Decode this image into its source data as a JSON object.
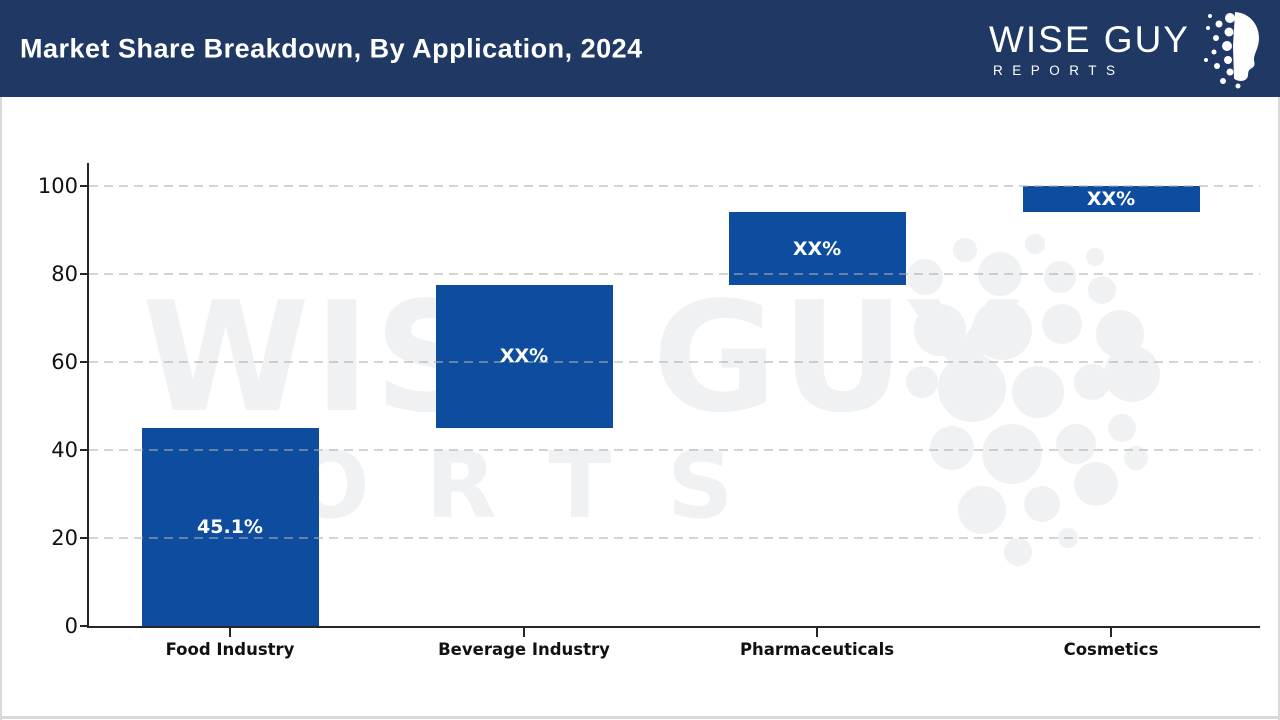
{
  "header": {
    "title": "Market Share Breakdown, By Application, 2024",
    "bg_color": "#1f3864",
    "logo": {
      "line1": "WISE GUY",
      "line2": "REPORTS"
    }
  },
  "watermark": {
    "line1": "WISE GUY",
    "line2": "PORTS"
  },
  "chart_data": {
    "type": "bar",
    "subtype": "waterfall",
    "title": "Market Share Breakdown, By Application, 2024",
    "categories": [
      "Food Industry",
      "Beverage Industry",
      "Pharmaceuticals",
      "Cosmetics"
    ],
    "segments": [
      {
        "category": "Food Industry",
        "start": 0,
        "end": 45.1,
        "label": "45.1%"
      },
      {
        "category": "Beverage Industry",
        "start": 45.1,
        "end": 77.5,
        "label": "XX%"
      },
      {
        "category": "Pharmaceuticals",
        "start": 77.5,
        "end": 94.0,
        "label": "XX%"
      },
      {
        "category": "Cosmetics",
        "start": 94.0,
        "end": 100.0,
        "label": "XX%"
      }
    ],
    "y_ticks": [
      0,
      20,
      40,
      60,
      80,
      100
    ],
    "ylim": [
      0,
      105
    ],
    "xlabel": "",
    "ylabel": "",
    "grid": true,
    "grid_style": "dashed",
    "bar_color": "#0d4c9e",
    "label_color": "#ffffff",
    "legend": "none"
  }
}
